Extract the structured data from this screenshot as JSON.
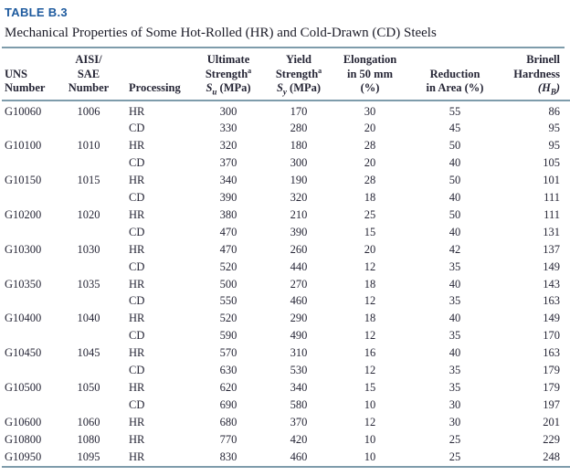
{
  "page": {
    "title": "TABLE B.3",
    "subtitle": "Mechanical Properties of Some Hot-Rolled (HR) and Cold-Drawn (CD) Steels"
  },
  "colors": {
    "title_blue": "#1d5a9e",
    "rule_blue": "#7e9cab",
    "body_text": "#262636"
  },
  "table": {
    "headers": {
      "uns": {
        "l1": "UNS",
        "l2": "Number"
      },
      "aisi": {
        "l1": "AISI/",
        "l2": "SAE",
        "l3": "Number"
      },
      "processing": {
        "l1": "Processing"
      },
      "ultimate": {
        "l1": "Ultimate",
        "l2_main": "Strength",
        "l2_sup": "a",
        "l3_sym": "S",
        "l3_sub": "u",
        "l3_unit": " (MPa)"
      },
      "yield": {
        "l1": "Yield",
        "l2_main": "Strength",
        "l2_sup": "a",
        "l3_sym": "S",
        "l3_sub": "y",
        "l3_unit": " (MPa)"
      },
      "elongation": {
        "l1": "Elongation",
        "l2": "in 50 mm",
        "l3": "(%)"
      },
      "reduction": {
        "l1": "Reduction",
        "l2": "in Area (%)"
      },
      "brinell": {
        "l1": "Brinell",
        "l2": "Hardness",
        "l3_open": "(",
        "l3_sym": "H",
        "l3_sub": "B",
        "l3_close": ")"
      }
    },
    "rows": [
      [
        "G10060",
        "1006",
        "HR",
        "300",
        "170",
        "30",
        "55",
        "86"
      ],
      [
        "",
        "",
        "CD",
        "330",
        "280",
        "20",
        "45",
        "95"
      ],
      [
        "G10100",
        "1010",
        "HR",
        "320",
        "180",
        "28",
        "50",
        "95"
      ],
      [
        "",
        "",
        "CD",
        "370",
        "300",
        "20",
        "40",
        "105"
      ],
      [
        "G10150",
        "1015",
        "HR",
        "340",
        "190",
        "28",
        "50",
        "101"
      ],
      [
        "",
        "",
        "CD",
        "390",
        "320",
        "18",
        "40",
        "111"
      ],
      [
        "G10200",
        "1020",
        "HR",
        "380",
        "210",
        "25",
        "50",
        "111"
      ],
      [
        "",
        "",
        "CD",
        "470",
        "390",
        "15",
        "40",
        "131"
      ],
      [
        "G10300",
        "1030",
        "HR",
        "470",
        "260",
        "20",
        "42",
        "137"
      ],
      [
        "",
        "",
        "CD",
        "520",
        "440",
        "12",
        "35",
        "149"
      ],
      [
        "G10350",
        "1035",
        "HR",
        "500",
        "270",
        "18",
        "40",
        "143"
      ],
      [
        "",
        "",
        "CD",
        "550",
        "460",
        "12",
        "35",
        "163"
      ],
      [
        "G10400",
        "1040",
        "HR",
        "520",
        "290",
        "18",
        "40",
        "149"
      ],
      [
        "",
        "",
        "CD",
        "590",
        "490",
        "12",
        "35",
        "170"
      ],
      [
        "G10450",
        "1045",
        "HR",
        "570",
        "310",
        "16",
        "40",
        "163"
      ],
      [
        "",
        "",
        "CD",
        "630",
        "530",
        "12",
        "35",
        "179"
      ],
      [
        "G10500",
        "1050",
        "HR",
        "620",
        "340",
        "15",
        "35",
        "179"
      ],
      [
        "",
        "",
        "CD",
        "690",
        "580",
        "10",
        "30",
        "197"
      ],
      [
        "G10600",
        "1060",
        "HR",
        "680",
        "370",
        "12",
        "30",
        "201"
      ],
      [
        "G10800",
        "1080",
        "HR",
        "770",
        "420",
        "10",
        "25",
        "229"
      ],
      [
        "G10950",
        "1095",
        "HR",
        "830",
        "460",
        "10",
        "25",
        "248"
      ]
    ]
  }
}
